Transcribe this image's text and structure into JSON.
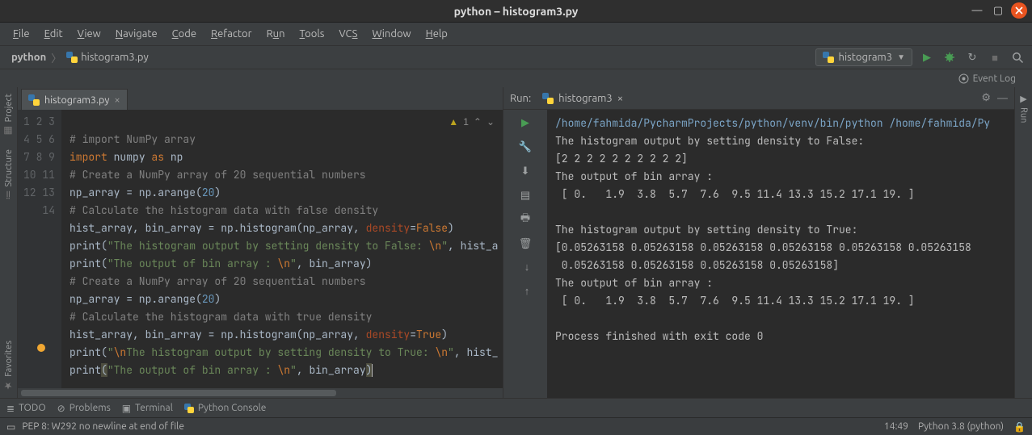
{
  "window": {
    "title": "python – histogram3.py"
  },
  "menu": {
    "items": [
      "File",
      "Edit",
      "View",
      "Navigate",
      "Code",
      "Refactor",
      "Run",
      "Tools",
      "VCS",
      "Window",
      "Help"
    ]
  },
  "breadcrumb": {
    "project": "python",
    "file": "histogram3.py"
  },
  "runConfig": {
    "name": "histogram3"
  },
  "eventLog": {
    "label": "Event Log"
  },
  "sideTools": {
    "left": [
      "Project",
      "Structure",
      "Favorites"
    ],
    "right": [
      "Run"
    ]
  },
  "editor": {
    "tab": {
      "label": "histogram3.py"
    },
    "warnings": {
      "count": "1"
    },
    "lines": [
      "# import NumPy array",
      "import numpy as np",
      "# Create a NumPy array of 20 sequential numbers",
      "np_array = np.arange(20)",
      "# Calculate the histogram data with false density",
      "hist_array, bin_array = np.histogram(np_array, density=False)",
      "print(\"The histogram output by setting density to False: \\n\", hist_a",
      "print(\"The output of bin array : \\n\", bin_array)",
      "# Create a NumPy array of 20 sequential numbers",
      "np_array = np.arange(20)",
      "# Calculate the histogram data with true density",
      "hist_array, bin_array = np.histogram(np_array, density=True)",
      "print(\"\\nThe histogram output by setting density to True: \\n\", hist_",
      "print(\"The output of bin array : \\n\", bin_array)"
    ]
  },
  "run": {
    "title": "Run:",
    "tab": "histogram3",
    "output": [
      {
        "cls": "path",
        "text": "/home/fahmida/PycharmProjects/python/venv/bin/python /home/fahmida/Py"
      },
      {
        "cls": "normal",
        "text": "The histogram output by setting density to False:"
      },
      {
        "cls": "normal",
        "text": "[2 2 2 2 2 2 2 2 2 2]"
      },
      {
        "cls": "normal",
        "text": "The output of bin array :"
      },
      {
        "cls": "normal",
        "text": " [ 0.   1.9  3.8  5.7  7.6  9.5 11.4 13.3 15.2 17.1 19. ]"
      },
      {
        "cls": "normal",
        "text": ""
      },
      {
        "cls": "normal",
        "text": "The histogram output by setting density to True:"
      },
      {
        "cls": "normal",
        "text": "[0.05263158 0.05263158 0.05263158 0.05263158 0.05263158 0.05263158"
      },
      {
        "cls": "normal",
        "text": " 0.05263158 0.05263158 0.05263158 0.05263158]"
      },
      {
        "cls": "normal",
        "text": "The output of bin array :"
      },
      {
        "cls": "normal",
        "text": " [ 0.   1.9  3.8  5.7  7.6  9.5 11.4 13.3 15.2 17.1 19. ]"
      },
      {
        "cls": "normal",
        "text": ""
      },
      {
        "cls": "normal",
        "text": "Process finished with exit code 0"
      }
    ]
  },
  "bottomTools": {
    "items": [
      "TODO",
      "Problems",
      "Terminal",
      "Python Console"
    ]
  },
  "status": {
    "left": "PEP 8: W292 no newline at end of file",
    "time": "14:49",
    "interpreter": "Python 3.8 (python)"
  },
  "colors": {
    "bg": "#3c3f41",
    "editorBg": "#2b2b2b",
    "comment": "#808080",
    "keyword": "#cc7832",
    "string": "#6a8759",
    "number": "#6897bb",
    "named_arg": "#aa4926",
    "text": "#a9b7c6",
    "accent_green": "#499c54",
    "accent_orange": "#e95420"
  }
}
